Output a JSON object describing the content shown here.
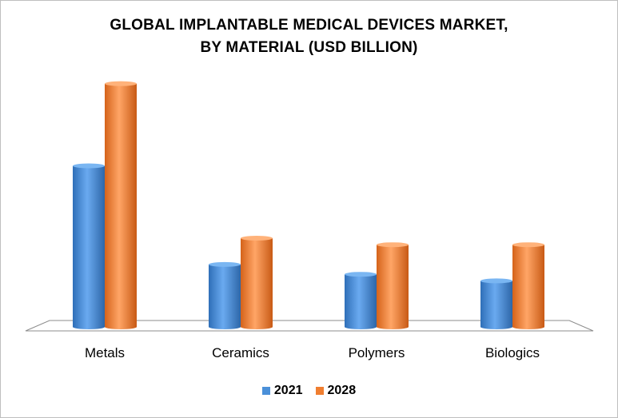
{
  "chart_data": {
    "type": "bar",
    "title_lines": [
      "GLOBAL IMPLANTABLE MEDICAL DEVICES MARKET,",
      "BY MATERIAL (USD BILLION)"
    ],
    "categories": [
      "Metals",
      "Ceramics",
      "Polymers",
      "Biologics"
    ],
    "series": [
      {
        "name": "2021",
        "values": [
          49,
          19,
          16,
          14
        ],
        "color": "#4a90d9"
      },
      {
        "name": "2028",
        "values": [
          74,
          27,
          25,
          25
        ],
        "color": "#f07e30"
      }
    ],
    "ylim": [
      0,
      80
    ],
    "grid": false,
    "legend": "bottom-center"
  }
}
